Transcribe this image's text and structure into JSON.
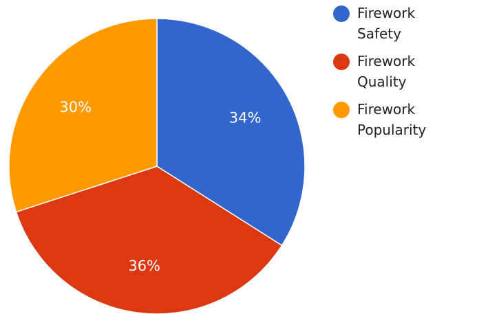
{
  "chart_data": {
    "type": "pie",
    "slices": [
      {
        "name": "Firework Safety",
        "value": 34,
        "label": "34%",
        "color": "#3366CC"
      },
      {
        "name": "Firework Quality",
        "value": 36,
        "label": "36%",
        "color": "#DC3912"
      },
      {
        "name": "Firework Popularity",
        "value": 30,
        "label": "30%",
        "color": "#FF9900"
      }
    ],
    "legend_position": "right",
    "start_angle": "top",
    "direction": "clockwise"
  }
}
